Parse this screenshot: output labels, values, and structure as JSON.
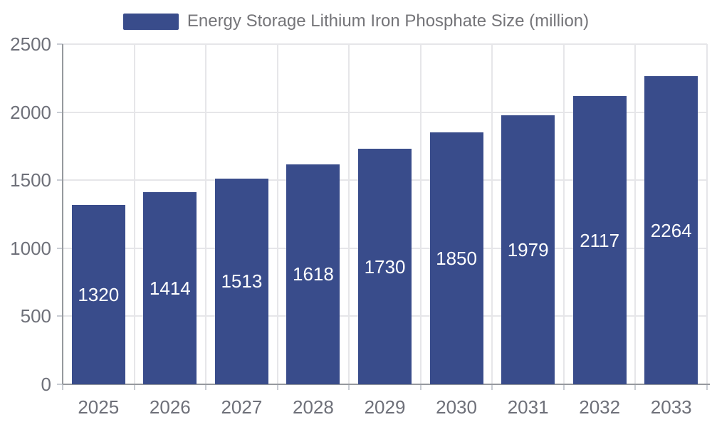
{
  "legend": {
    "label": "Energy Storage Lithium Iron Phosphate Size (million)"
  },
  "colors": {
    "bar": "#394C8B",
    "grid_line": "#E6E6E9",
    "axis_line": "#96999E",
    "tick_mark": "#C9CDD4",
    "tick_label": "#6E7079",
    "value_label": "#FFFFFF",
    "legend_text": "#757579",
    "background": "#FFFFFF"
  },
  "chart_data": {
    "type": "bar",
    "title": "Energy Storage Lithium Iron Phosphate Size (million)",
    "series_name": "Energy Storage Lithium Iron Phosphate Size (million)",
    "categories": [
      "2025",
      "2026",
      "2027",
      "2028",
      "2029",
      "2030",
      "2031",
      "2032",
      "2033"
    ],
    "values": [
      1320,
      1414,
      1513,
      1618,
      1730,
      1850,
      1979,
      2117,
      2264
    ],
    "xlabel": "",
    "ylabel": "",
    "ylim": [
      0,
      2500
    ],
    "y_ticks": [
      0,
      500,
      1000,
      1500,
      2000,
      2500
    ],
    "grid": true,
    "legend_position": "top-center",
    "value_labels_position": "inside-center"
  }
}
